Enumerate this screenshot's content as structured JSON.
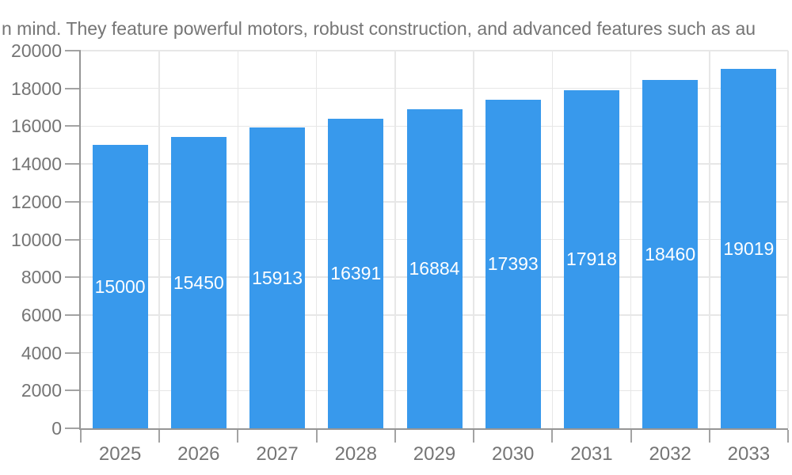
{
  "chart_data": {
    "type": "bar",
    "title": "n mind. They feature powerful motors, robust construction, and advanced features such as au",
    "categories": [
      "2025",
      "2026",
      "2027",
      "2028",
      "2029",
      "2030",
      "2031",
      "2032",
      "2033"
    ],
    "values": [
      15000,
      15450,
      15913,
      16391,
      16884,
      17393,
      17918,
      18460,
      19019
    ],
    "value_labels": [
      "15000",
      "15450",
      "15913",
      "16391",
      "16884",
      "17393",
      "17918",
      "18460",
      "19019"
    ],
    "ytick_labels": [
      "0",
      "2000",
      "4000",
      "6000",
      "8000",
      "10000",
      "12000",
      "14000",
      "16000",
      "18000",
      "20000"
    ],
    "ylim": [
      0,
      20000
    ],
    "ytick_step": 2000,
    "xlabel": "",
    "ylabel": "",
    "grid": "both",
    "legend": "none",
    "value_label_position": "inside-center",
    "colors": {
      "bar": "#3899ec",
      "bar_value_text": "#ffffff",
      "axis_line": "#969696",
      "tick_mark": "#a3a3a3",
      "gridline": "#e7e7e7",
      "label_text": "#757575",
      "background": "#ffffff"
    }
  }
}
